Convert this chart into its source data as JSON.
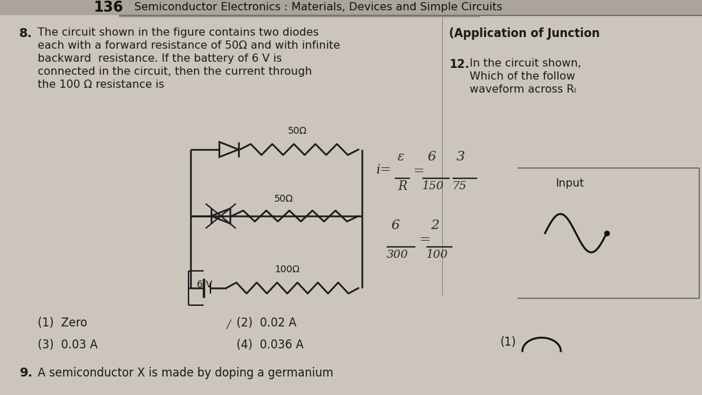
{
  "background_color": "#ccc5bb",
  "page_bg": "#e8e2d8",
  "page_number": "136",
  "title_line": "Semiconductor Electronics : Materials, Devices and Simple Circuits",
  "q8_lines": [
    "The circuit shown in the figure contains two diodes",
    "each with a forward resistance of 50Ω and with infinite",
    "backward  resistance. If the battery of 6 V is",
    "connected in the circuit, then the current through",
    "the 100 Ω resistance is"
  ],
  "right_header": "(Application of Junction",
  "right_q12_num": "12.",
  "right_q12_lines": [
    "In the circuit shown,",
    "Which of the follow",
    "waveform across Rₗ"
  ],
  "right_input_label": "Input",
  "answer_1": "(1)  Zero",
  "answer_2": "(2)  0.02 A",
  "answer_3": "(3)  0.03 A",
  "answer_4": "(4)  0.036 A",
  "q9_text": "A semiconductor X is made by doping a germanium",
  "circuit_color": "#1a1a1a",
  "text_color": "#1a1a1a",
  "hw_color": "#2a2a2a"
}
